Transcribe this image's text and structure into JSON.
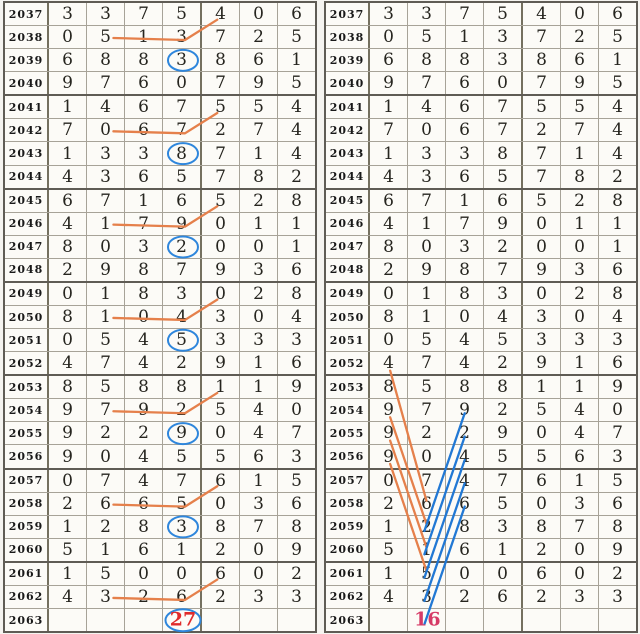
{
  "chart_data": {
    "type": "table",
    "rows": [
      {
        "year": "2037",
        "digits": [
          "3",
          "3",
          "7",
          "5",
          "4",
          "0",
          "6"
        ]
      },
      {
        "year": "2038",
        "digits": [
          "0",
          "5",
          "1",
          "3",
          "7",
          "2",
          "5"
        ]
      },
      {
        "year": "2039",
        "digits": [
          "6",
          "8",
          "8",
          "3",
          "8",
          "6",
          "1"
        ]
      },
      {
        "year": "2040",
        "digits": [
          "9",
          "7",
          "6",
          "0",
          "7",
          "9",
          "5"
        ]
      },
      {
        "year": "2041",
        "digits": [
          "1",
          "4",
          "6",
          "7",
          "5",
          "5",
          "4"
        ]
      },
      {
        "year": "2042",
        "digits": [
          "7",
          "0",
          "6",
          "7",
          "2",
          "7",
          "4"
        ]
      },
      {
        "year": "2043",
        "digits": [
          "1",
          "3",
          "3",
          "8",
          "7",
          "1",
          "4"
        ]
      },
      {
        "year": "2044",
        "digits": [
          "4",
          "3",
          "6",
          "5",
          "7",
          "8",
          "2"
        ]
      },
      {
        "year": "2045",
        "digits": [
          "6",
          "7",
          "1",
          "6",
          "5",
          "2",
          "8"
        ]
      },
      {
        "year": "2046",
        "digits": [
          "4",
          "1",
          "7",
          "9",
          "0",
          "1",
          "1"
        ]
      },
      {
        "year": "2047",
        "digits": [
          "8",
          "0",
          "3",
          "2",
          "0",
          "0",
          "1"
        ]
      },
      {
        "year": "2048",
        "digits": [
          "2",
          "9",
          "8",
          "7",
          "9",
          "3",
          "6"
        ]
      },
      {
        "year": "2049",
        "digits": [
          "0",
          "1",
          "8",
          "3",
          "0",
          "2",
          "8"
        ]
      },
      {
        "year": "2050",
        "digits": [
          "8",
          "1",
          "0",
          "4",
          "3",
          "0",
          "4"
        ]
      },
      {
        "year": "2051",
        "digits": [
          "0",
          "5",
          "4",
          "5",
          "3",
          "3",
          "3"
        ]
      },
      {
        "year": "2052",
        "digits": [
          "4",
          "7",
          "4",
          "2",
          "9",
          "1",
          "6"
        ]
      },
      {
        "year": "2053",
        "digits": [
          "8",
          "5",
          "8",
          "8",
          "1",
          "1",
          "9"
        ]
      },
      {
        "year": "2054",
        "digits": [
          "9",
          "7",
          "9",
          "2",
          "5",
          "4",
          "0"
        ]
      },
      {
        "year": "2055",
        "digits": [
          "9",
          "2",
          "2",
          "9",
          "0",
          "4",
          "7"
        ]
      },
      {
        "year": "2056",
        "digits": [
          "9",
          "0",
          "4",
          "5",
          "5",
          "6",
          "3"
        ]
      },
      {
        "year": "2057",
        "digits": [
          "0",
          "7",
          "4",
          "7",
          "6",
          "1",
          "5"
        ]
      },
      {
        "year": "2058",
        "digits": [
          "2",
          "6",
          "6",
          "5",
          "0",
          "3",
          "6"
        ]
      },
      {
        "year": "2059",
        "digits": [
          "1",
          "2",
          "8",
          "3",
          "8",
          "7",
          "8"
        ]
      },
      {
        "year": "2060",
        "digits": [
          "5",
          "1",
          "6",
          "1",
          "2",
          "0",
          "9"
        ]
      },
      {
        "year": "2061",
        "digits": [
          "1",
          "5",
          "0",
          "0",
          "6",
          "0",
          "2"
        ]
      },
      {
        "year": "2062",
        "digits": [
          "4",
          "3",
          "2",
          "6",
          "2",
          "3",
          "3"
        ]
      },
      {
        "year": "2063",
        "digits": [
          "",
          "",
          "",
          "",
          "",
          "",
          ""
        ]
      }
    ]
  },
  "left_panel": {
    "circles": [
      {
        "row": "2039",
        "col": 4
      },
      {
        "row": "2043",
        "col": 4
      },
      {
        "row": "2047",
        "col": 4
      },
      {
        "row": "2051",
        "col": 4
      },
      {
        "row": "2055",
        "col": 4
      },
      {
        "row": "2059",
        "col": 4
      }
    ],
    "connectors": [
      {
        "row": "2038",
        "from_col": 2,
        "via_col": 4,
        "to_row": "2037",
        "to_col": 5
      },
      {
        "row": "2042",
        "from_col": 2,
        "via_col": 4,
        "to_row": "2041",
        "to_col": 5
      },
      {
        "row": "2046",
        "from_col": 2,
        "via_col": 4,
        "to_row": "2045",
        "to_col": 5
      },
      {
        "row": "2050",
        "from_col": 2,
        "via_col": 4,
        "to_row": "2049",
        "to_col": 5
      },
      {
        "row": "2054",
        "from_col": 2,
        "via_col": 4,
        "to_row": "2053",
        "to_col": 5
      },
      {
        "row": "2058",
        "from_col": 2,
        "via_col": 4,
        "to_row": "2057",
        "to_col": 5
      },
      {
        "row": "2062",
        "from_col": 2,
        "via_col": 4,
        "to_row": "2061",
        "to_col": 5
      }
    ],
    "result": {
      "text": "27",
      "row": "2063",
      "col": 4,
      "circled": true
    }
  },
  "right_panel": {
    "orange_lines": [
      {
        "from": {
          "row": "2052",
          "col": 1
        },
        "to": {
          "row": "2058",
          "col": 2
        }
      },
      {
        "from": {
          "row": "2054",
          "col": 1
        },
        "to": {
          "row": "2059",
          "col": 2
        }
      },
      {
        "from": {
          "row": "2055",
          "col": 1
        },
        "to": {
          "row": "2060",
          "col": 2
        }
      },
      {
        "from": {
          "row": "2056",
          "col": 1
        },
        "to": {
          "row": "2061",
          "col": 2
        }
      }
    ],
    "blue_lines": [
      {
        "from": {
          "row": "2059",
          "col": 2
        },
        "to": {
          "row": "2054",
          "col": 3
        }
      },
      {
        "from": {
          "row": "2060",
          "col": 2
        },
        "to": {
          "row": "2055",
          "col": 3
        }
      },
      {
        "from": {
          "row": "2061",
          "col": 2
        },
        "to": {
          "row": "2056",
          "col": 3
        }
      },
      {
        "from": {
          "row": "2062",
          "col": 2
        },
        "to": {
          "row": "2057",
          "col": 3
        }
      },
      {
        "from": {
          "row": "2063",
          "col": 2
        },
        "to": {
          "row": "2058",
          "col": 3
        }
      }
    ],
    "result": {
      "text": "16",
      "row": "2063",
      "col": 2,
      "circled": false
    }
  },
  "heavy_border_after_rows": [
    "2040",
    "2044",
    "2048",
    "2052",
    "2056",
    "2060"
  ],
  "colors": {
    "annotation_orange": "#e5804b",
    "annotation_blue": "#2178d4",
    "circle_blue": "#2e86dc",
    "result_red": "#e02b2b",
    "result_pink": "#d63a66"
  }
}
